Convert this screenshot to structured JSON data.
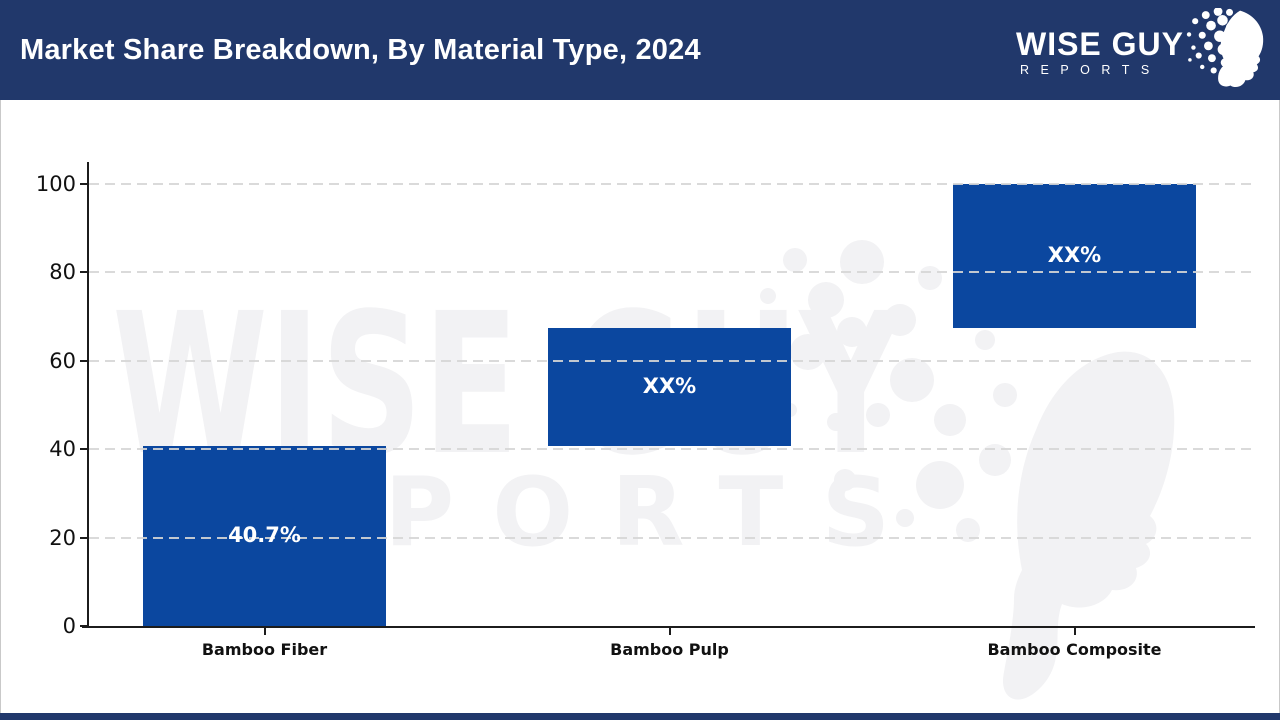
{
  "header": {
    "title": "Market Share Breakdown, By Material Type, 2024",
    "bg_color": "#21386b",
    "logo": {
      "line1": "WISE GUY",
      "line2": "REPORTS"
    }
  },
  "watermark": {
    "line1": "WISE GUY",
    "line2": "REPORTS"
  },
  "footer": {
    "bg_color": "#21386b"
  },
  "chart_data": {
    "type": "bar",
    "subtype": "waterfall",
    "title": "Market Share Breakdown, By Material Type, 2024",
    "xlabel": "",
    "ylabel": "",
    "categories": [
      "Bamboo Fiber",
      "Bamboo Pulp",
      "Bamboo Composite"
    ],
    "segments": [
      {
        "category": "Bamboo Fiber",
        "start": 0,
        "end": 40.7,
        "label": "40.7%"
      },
      {
        "category": "Bamboo Pulp",
        "start": 40.7,
        "end": 67.5,
        "label": "XX%"
      },
      {
        "category": "Bamboo Composite",
        "start": 67.5,
        "end": 100,
        "label": "XX%"
      }
    ],
    "yticks": [
      0,
      20,
      40,
      60,
      80,
      100
    ],
    "ylim": [
      0,
      105
    ],
    "grid": "horizontal-dashed",
    "legend": "none",
    "colors": {
      "bar": "#0b479f",
      "bar_label": "#ffffff",
      "grid": "#d6d6d6",
      "axis": "#1c1c1c",
      "tick_label": "#111111"
    }
  }
}
